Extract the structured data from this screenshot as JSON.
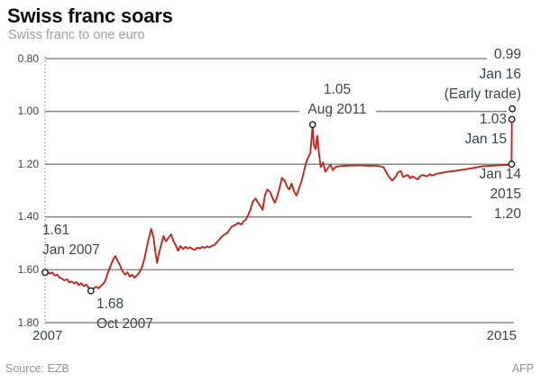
{
  "header": {
    "title": "Swiss franc soars",
    "subtitle": "Swiss franc to one euro"
  },
  "footer": {
    "source": "Source: EZB",
    "credit": "AFP"
  },
  "chart_data": {
    "type": "line",
    "title": "Swiss franc soars",
    "subtitle": "Swiss franc to one euro",
    "xlabel": "",
    "ylabel": "",
    "xlim": [
      2007,
      2015.08
    ],
    "ylim": [
      0.8,
      1.8
    ],
    "y_inverted": true,
    "grid": true,
    "yticks": [
      "0.80",
      "1.00",
      "1.20",
      "1.40",
      "1.60",
      "1.80"
    ],
    "xticks": [
      "2007",
      "2015"
    ],
    "line_color": "#c0271d",
    "marker_style": "open-circle",
    "series": [
      {
        "name": "swiss-franc-per-euro",
        "color": "#c0271d",
        "points": [
          [
            2007.0,
            1.61
          ],
          [
            2007.04,
            1.606
          ],
          [
            2007.08,
            1.615
          ],
          [
            2007.12,
            1.61
          ],
          [
            2007.17,
            1.622
          ],
          [
            2007.21,
            1.618
          ],
          [
            2007.25,
            1.63
          ],
          [
            2007.29,
            1.633
          ],
          [
            2007.33,
            1.64
          ],
          [
            2007.38,
            1.636
          ],
          [
            2007.42,
            1.648
          ],
          [
            2007.46,
            1.644
          ],
          [
            2007.5,
            1.652
          ],
          [
            2007.54,
            1.646
          ],
          [
            2007.58,
            1.658
          ],
          [
            2007.62,
            1.651
          ],
          [
            2007.67,
            1.662
          ],
          [
            2007.71,
            1.656
          ],
          [
            2007.75,
            1.668
          ],
          [
            2007.79,
            1.68
          ],
          [
            2007.83,
            1.671
          ],
          [
            2007.88,
            1.664
          ],
          [
            2007.92,
            1.67
          ],
          [
            2007.96,
            1.661
          ],
          [
            2008.0,
            1.654
          ],
          [
            2008.04,
            1.64
          ],
          [
            2008.08,
            1.612
          ],
          [
            2008.13,
            1.585
          ],
          [
            2008.17,
            1.562
          ],
          [
            2008.21,
            1.548
          ],
          [
            2008.25,
            1.566
          ],
          [
            2008.29,
            1.582
          ],
          [
            2008.33,
            1.604
          ],
          [
            2008.38,
            1.618
          ],
          [
            2008.42,
            1.61
          ],
          [
            2008.46,
            1.626
          ],
          [
            2008.5,
            1.618
          ],
          [
            2008.54,
            1.63
          ],
          [
            2008.58,
            1.622
          ],
          [
            2008.63,
            1.608
          ],
          [
            2008.67,
            1.59
          ],
          [
            2008.71,
            1.56
          ],
          [
            2008.75,
            1.518
          ],
          [
            2008.79,
            1.478
          ],
          [
            2008.83,
            1.445
          ],
          [
            2008.87,
            1.478
          ],
          [
            2008.9,
            1.532
          ],
          [
            2008.93,
            1.574
          ],
          [
            2008.96,
            1.54
          ],
          [
            2009.0,
            1.506
          ],
          [
            2009.04,
            1.472
          ],
          [
            2009.08,
            1.492
          ],
          [
            2009.13,
            1.478
          ],
          [
            2009.17,
            1.466
          ],
          [
            2009.21,
            1.49
          ],
          [
            2009.25,
            1.506
          ],
          [
            2009.29,
            1.528
          ],
          [
            2009.33,
            1.51
          ],
          [
            2009.38,
            1.521
          ],
          [
            2009.42,
            1.513
          ],
          [
            2009.46,
            1.519
          ],
          [
            2009.5,
            1.515
          ],
          [
            2009.54,
            1.521
          ],
          [
            2009.58,
            1.524
          ],
          [
            2009.63,
            1.516
          ],
          [
            2009.67,
            1.519
          ],
          [
            2009.71,
            1.513
          ],
          [
            2009.75,
            1.517
          ],
          [
            2009.79,
            1.511
          ],
          [
            2009.83,
            1.515
          ],
          [
            2009.88,
            1.509
          ],
          [
            2009.92,
            1.506
          ],
          [
            2009.96,
            1.496
          ],
          [
            2010.0,
            1.486
          ],
          [
            2010.04,
            1.476
          ],
          [
            2010.08,
            1.468
          ],
          [
            2010.13,
            1.462
          ],
          [
            2010.17,
            1.451
          ],
          [
            2010.21,
            1.438
          ],
          [
            2010.25,
            1.433
          ],
          [
            2010.29,
            1.428
          ],
          [
            2010.33,
            1.422
          ],
          [
            2010.38,
            1.429
          ],
          [
            2010.42,
            1.416
          ],
          [
            2010.46,
            1.41
          ],
          [
            2010.5,
            1.394
          ],
          [
            2010.54,
            1.371
          ],
          [
            2010.58,
            1.341
          ],
          [
            2010.63,
            1.33
          ],
          [
            2010.67,
            1.346
          ],
          [
            2010.71,
            1.359
          ],
          [
            2010.75,
            1.373
          ],
          [
            2010.79,
            1.316
          ],
          [
            2010.83,
            1.296
          ],
          [
            2010.88,
            1.306
          ],
          [
            2010.92,
            1.329
          ],
          [
            2010.96,
            1.346
          ],
          [
            2011.0,
            1.323
          ],
          [
            2011.04,
            1.291
          ],
          [
            2011.08,
            1.252
          ],
          [
            2011.13,
            1.263
          ],
          [
            2011.17,
            1.286
          ],
          [
            2011.21,
            1.296
          ],
          [
            2011.25,
            1.273
          ],
          [
            2011.29,
            1.303
          ],
          [
            2011.33,
            1.319
          ],
          [
            2011.38,
            1.289
          ],
          [
            2011.42,
            1.263
          ],
          [
            2011.46,
            1.229
          ],
          [
            2011.5,
            1.193
          ],
          [
            2011.54,
            1.171
          ],
          [
            2011.57,
            1.159
          ],
          [
            2011.59,
            1.11
          ],
          [
            2011.61,
            1.05
          ],
          [
            2011.63,
            1.126
          ],
          [
            2011.66,
            1.143
          ],
          [
            2011.69,
            1.093
          ],
          [
            2011.72,
            1.159
          ],
          [
            2011.75,
            1.211
          ],
          [
            2011.79,
            1.193
          ],
          [
            2011.83,
            1.229
          ],
          [
            2011.88,
            1.213
          ],
          [
            2011.92,
            1.201
          ],
          [
            2011.96,
            1.223
          ],
          [
            2012.0,
            1.211
          ],
          [
            2012.08,
            1.207
          ],
          [
            2012.17,
            1.206
          ],
          [
            2012.25,
            1.205
          ],
          [
            2012.33,
            1.205
          ],
          [
            2012.42,
            1.204
          ],
          [
            2012.5,
            1.205
          ],
          [
            2012.58,
            1.206
          ],
          [
            2012.67,
            1.205
          ],
          [
            2012.75,
            1.207
          ],
          [
            2012.83,
            1.211
          ],
          [
            2012.92,
            1.246
          ],
          [
            2012.98,
            1.262
          ],
          [
            2013.04,
            1.248
          ],
          [
            2013.08,
            1.231
          ],
          [
            2013.13,
            1.226
          ],
          [
            2013.17,
            1.248
          ],
          [
            2013.25,
            1.241
          ],
          [
            2013.29,
            1.253
          ],
          [
            2013.33,
            1.246
          ],
          [
            2013.42,
            1.258
          ],
          [
            2013.46,
            1.246
          ],
          [
            2013.5,
            1.241
          ],
          [
            2013.58,
            1.246
          ],
          [
            2013.63,
            1.238
          ],
          [
            2013.67,
            1.243
          ],
          [
            2013.75,
            1.236
          ],
          [
            2013.83,
            1.233
          ],
          [
            2013.92,
            1.229
          ],
          [
            2014.0,
            1.227
          ],
          [
            2014.08,
            1.225
          ],
          [
            2014.17,
            1.222
          ],
          [
            2014.25,
            1.219
          ],
          [
            2014.33,
            1.216
          ],
          [
            2014.42,
            1.213
          ],
          [
            2014.5,
            1.209
          ],
          [
            2014.58,
            1.207
          ],
          [
            2014.67,
            1.206
          ],
          [
            2014.75,
            1.205
          ],
          [
            2014.83,
            1.204
          ],
          [
            2014.92,
            1.203
          ],
          [
            2015.0,
            1.202
          ],
          [
            2015.04,
            1.2
          ],
          [
            2015.045,
            1.03
          ]
        ]
      }
    ],
    "annotations": [
      {
        "id": "start",
        "t": 2007.0,
        "v": 1.61,
        "lines": [
          "1.61",
          "Jan 2007"
        ]
      },
      {
        "id": "oct2007",
        "t": 2007.79,
        "v": 1.68,
        "lines": [
          "1.68",
          "Oct 2007"
        ]
      },
      {
        "id": "aug2011",
        "t": 2011.61,
        "v": 1.05,
        "lines": [
          "1.05",
          "Aug 2011"
        ]
      },
      {
        "id": "jan16",
        "t": 2015.05,
        "v": 0.99,
        "lines": [
          "0.99",
          "Jan 16",
          "(Early trade)"
        ]
      },
      {
        "id": "jan15",
        "t": 2015.045,
        "v": 1.03,
        "lines": [
          "1.03",
          "Jan 15"
        ]
      },
      {
        "id": "jan14",
        "t": 2015.04,
        "v": 1.2,
        "lines": [
          "Jan 14",
          "2015",
          "1.20"
        ]
      }
    ]
  }
}
